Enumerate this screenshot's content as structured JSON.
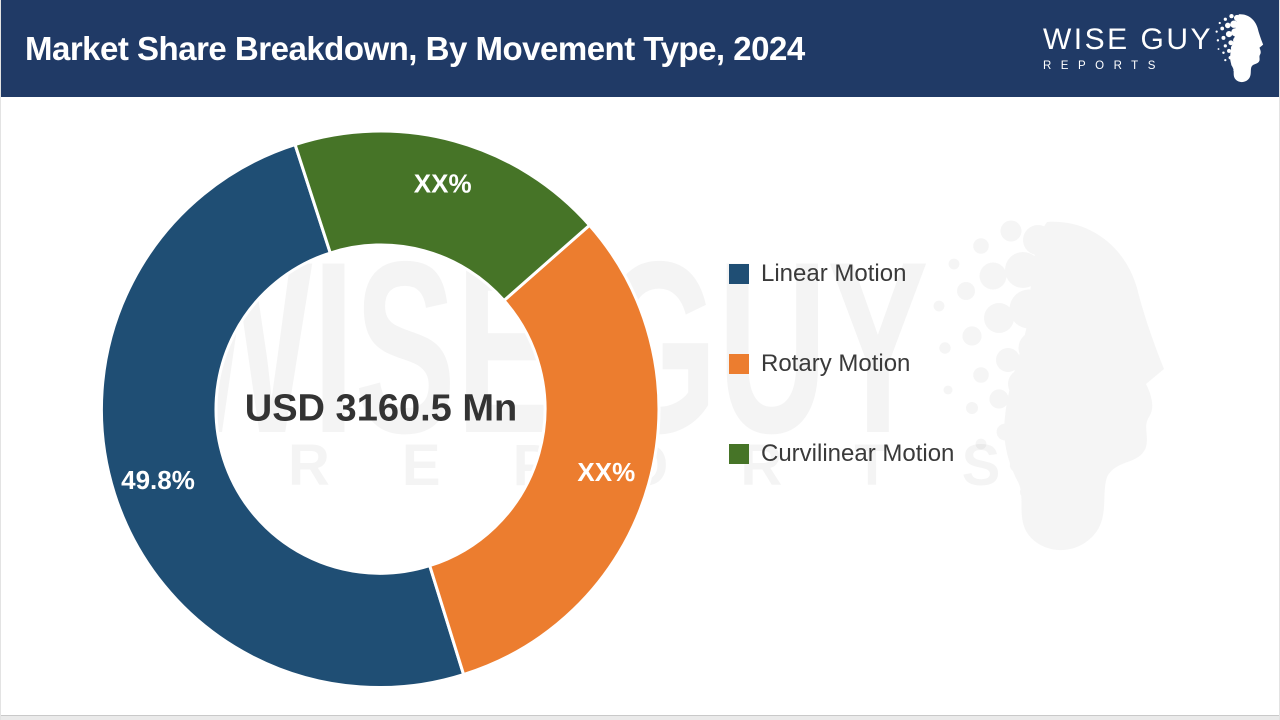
{
  "header": {
    "title": "Market Share Breakdown, By Movement Type, 2024",
    "bg_color": "#203A66",
    "logo": {
      "name": "WISE GUY",
      "subtitle": "REPORTS"
    }
  },
  "watermark": {
    "line1": "WISE GUY",
    "line2": "REPORTS"
  },
  "chart_data": {
    "type": "pie",
    "subtype": "donut",
    "title": "Market Share Breakdown, By Movement Type, 2024",
    "center_label": "USD 3160.5 Mn",
    "slices": [
      {
        "label": "Linear Motion",
        "display_label": "49.8%",
        "value_pct": 49.8,
        "color": "#1F4E74"
      },
      {
        "label": "Rotary Motion",
        "display_label": "XX%",
        "value_pct": 31.7,
        "color": "#EC7D2F"
      },
      {
        "label": "Curvilinear Motion",
        "display_label": "XX%",
        "value_pct": 18.5,
        "color": "#467427"
      }
    ],
    "start_clock_angle_deg": 342,
    "sweep_direction": "counterclockwise",
    "inner_radius_ratio": 0.59,
    "separator_color": "#FFFFFF",
    "slice_label_color": "#FFFFFF",
    "legend_position": "right"
  }
}
